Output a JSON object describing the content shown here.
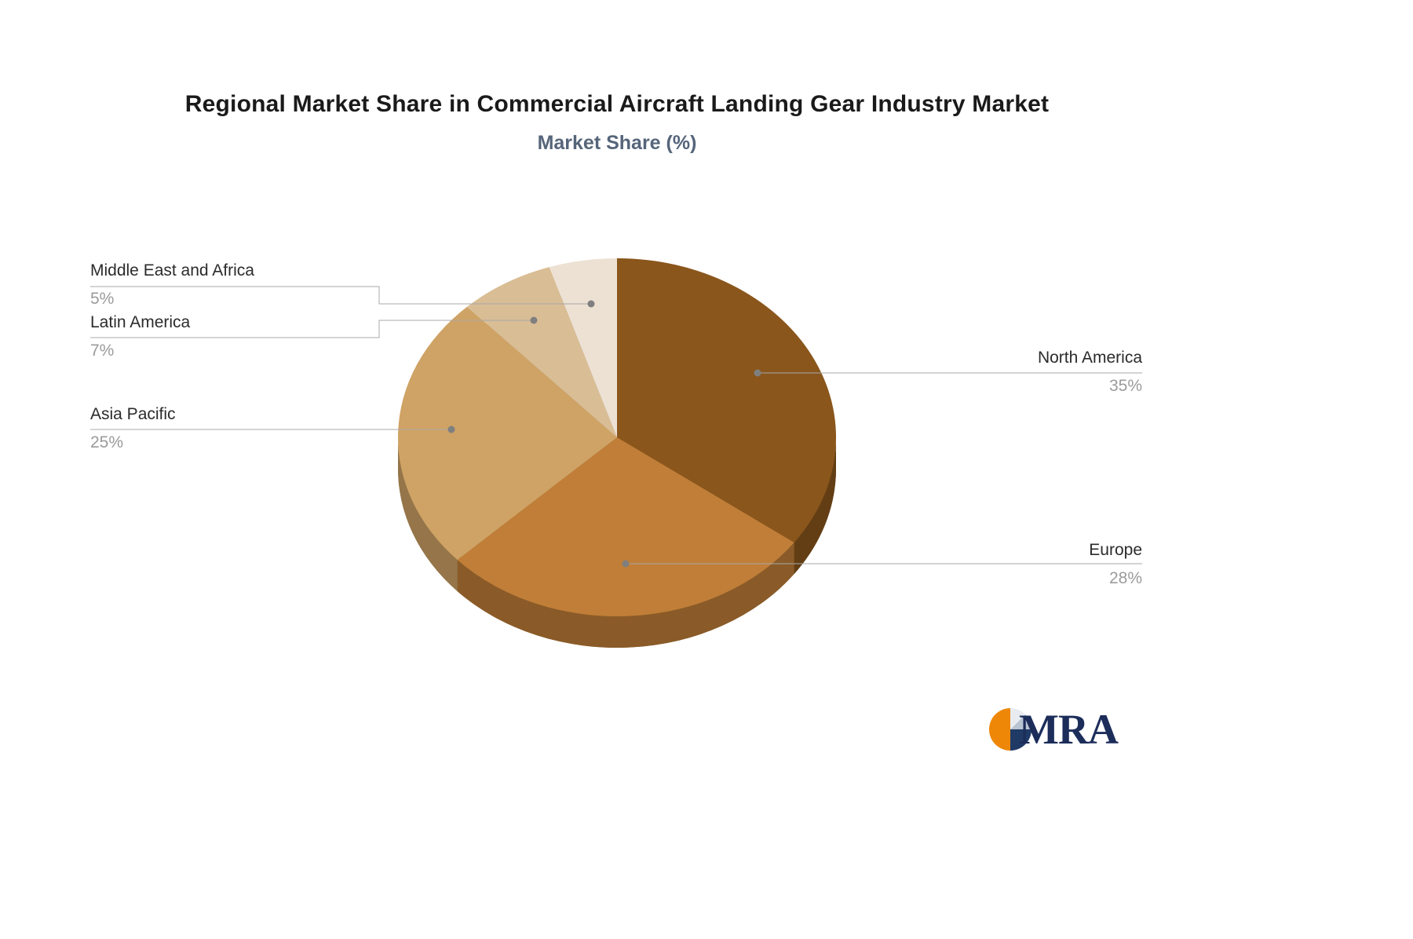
{
  "title": "Regional Market Share in Commercial Aircraft Landing Gear Industry Market",
  "subtitle": "Market Share (%)",
  "logo": {
    "text": "MRA"
  },
  "chart_data": {
    "type": "pie",
    "style": "3d",
    "title": "Regional Market Share in Commercial Aircraft Landing Gear Industry Market",
    "subtitle": "Market Share (%)",
    "unit": "%",
    "direction": "clockwise",
    "start_angle_deg": 0,
    "legend_position": "callout-labels",
    "labels": [
      "North America",
      "Europe",
      "Asia Pacific",
      "Latin America",
      "Middle East and Africa"
    ],
    "values": [
      35,
      28,
      25,
      7,
      5
    ],
    "value_labels": [
      "35%",
      "28%",
      "25%",
      "7%",
      "5%"
    ],
    "colors": [
      "#8a561c",
      "#c07e38",
      "#cfa365",
      "#d9bd95",
      "#ece1d3"
    ]
  }
}
